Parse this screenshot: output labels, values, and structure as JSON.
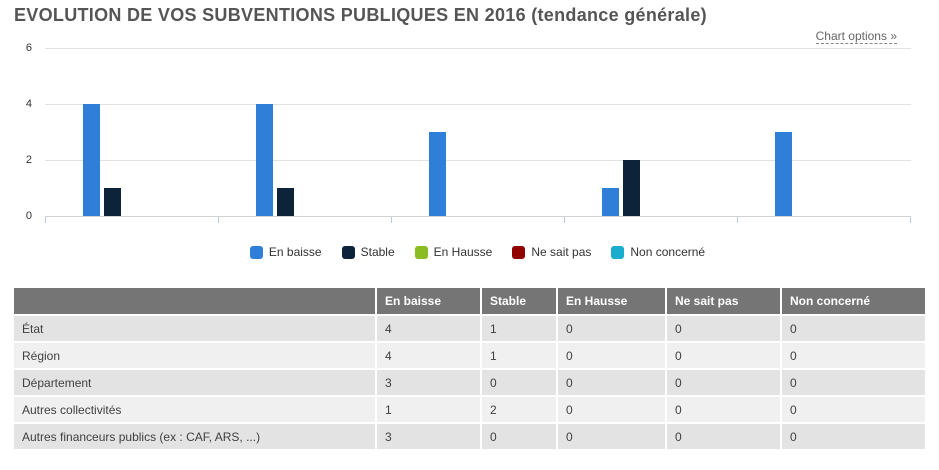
{
  "title": "EVOLUTION DE VOS SUBVENTIONS PUBLIQUES EN 2016 (tendance générale)",
  "chart_options_label": "Chart options »",
  "chart_data": {
    "type": "bar",
    "categories": [
      "État",
      "Région",
      "Département",
      "Autres collectivités",
      "Autres financeurs publics (ex : CAF, ARS, ...)"
    ],
    "series": [
      {
        "name": "En baisse",
        "color": "#2f7ed8",
        "values": [
          4,
          4,
          3,
          1,
          3
        ]
      },
      {
        "name": "Stable",
        "color": "#0d233a",
        "values": [
          1,
          1,
          0,
          2,
          0
        ]
      },
      {
        "name": "En Hausse",
        "color": "#8bbc21",
        "values": [
          0,
          0,
          0,
          0,
          0
        ]
      },
      {
        "name": "Ne sait pas",
        "color": "#910000",
        "values": [
          0,
          0,
          0,
          0,
          0
        ]
      },
      {
        "name": "Non concerné",
        "color": "#1aadce",
        "values": [
          0,
          0,
          0,
          0,
          0
        ]
      }
    ],
    "title": "",
    "xlabel": "",
    "ylabel": "",
    "ylim": [
      0,
      6
    ],
    "yticks": [
      0,
      2,
      4,
      6
    ],
    "grid": true,
    "legend_position": "bottom"
  },
  "table": {
    "columns": [
      "",
      "En baisse",
      "Stable",
      "En Hausse",
      "Ne sait pas",
      "Non concerné"
    ],
    "rows": [
      {
        "label": "État",
        "values": [
          4,
          1,
          0,
          0,
          0
        ]
      },
      {
        "label": "Région",
        "values": [
          4,
          1,
          0,
          0,
          0
        ]
      },
      {
        "label": "Département",
        "values": [
          3,
          0,
          0,
          0,
          0
        ]
      },
      {
        "label": "Autres collectivités",
        "values": [
          1,
          2,
          0,
          0,
          0
        ]
      },
      {
        "label": "Autres financeurs publics (ex : CAF, ARS, ...)",
        "values": [
          3,
          0,
          0,
          0,
          0
        ]
      }
    ]
  },
  "colors": {
    "title_text": "#555555",
    "link_text": "#666666",
    "table_header_bg": "#757575",
    "table_row_odd_bg": "#e3e3e3",
    "table_row_even_bg": "#f0f0f0",
    "gridline": "#e2e2e2",
    "axis_line": "#d2d2d2",
    "axis_tick": "#b8cce0"
  }
}
